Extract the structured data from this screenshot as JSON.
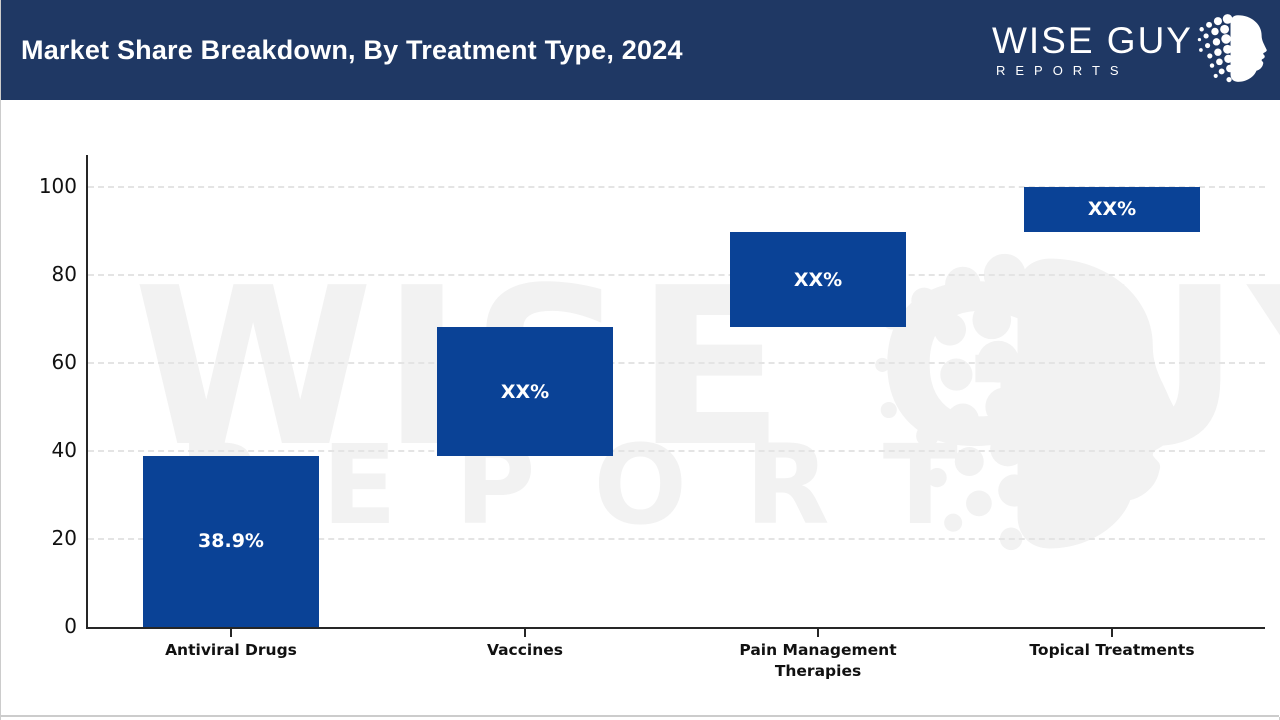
{
  "header": {
    "title": "Market Share Breakdown, By Treatment Type, 2024",
    "bg_color": "#1f3864",
    "logo": {
      "line1": "WISE GUY",
      "line2": "REPORTS"
    }
  },
  "watermark": {
    "line1": "WISE GUY",
    "line2": "REPORTS"
  },
  "chart_data": {
    "type": "bar",
    "subtype": "waterfall",
    "title": "Market Share Breakdown, By Treatment Type, 2024",
    "xlabel": "",
    "ylabel": "",
    "categories": [
      [
        "Antiviral Drugs"
      ],
      [
        "Vaccines"
      ],
      [
        "Pain Management",
        "Therapies"
      ],
      [
        "Topical Treatments"
      ]
    ],
    "segments": [
      [
        0,
        38.9
      ],
      [
        38.9,
        68.1
      ],
      [
        68.1,
        89.8
      ],
      [
        89.8,
        100
      ]
    ],
    "values": [
      38.9,
      29.2,
      21.7,
      10.2
    ],
    "bar_labels": [
      "38.9%",
      "XX%",
      "XX%",
      "XX%"
    ],
    "yticks": [
      0,
      20,
      40,
      60,
      80,
      100
    ],
    "ylim": [
      0,
      106
    ],
    "grid": "horizontal-dashed",
    "legend": "none",
    "bar_color": "#0a4296",
    "bar_label_color": "#ffffff",
    "axis_color": "#262626",
    "grid_color": "#e4e4e4"
  }
}
